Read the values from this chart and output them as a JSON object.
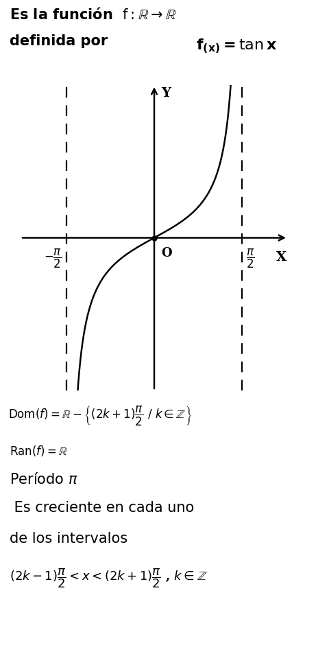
{
  "bg_color": "#ffffff",
  "yellow": "#ffff00",
  "pi_half": 1.5707963267948966,
  "graph_ylim": [
    -5,
    5
  ],
  "graph_xlim": [
    -2.4,
    2.4
  ]
}
